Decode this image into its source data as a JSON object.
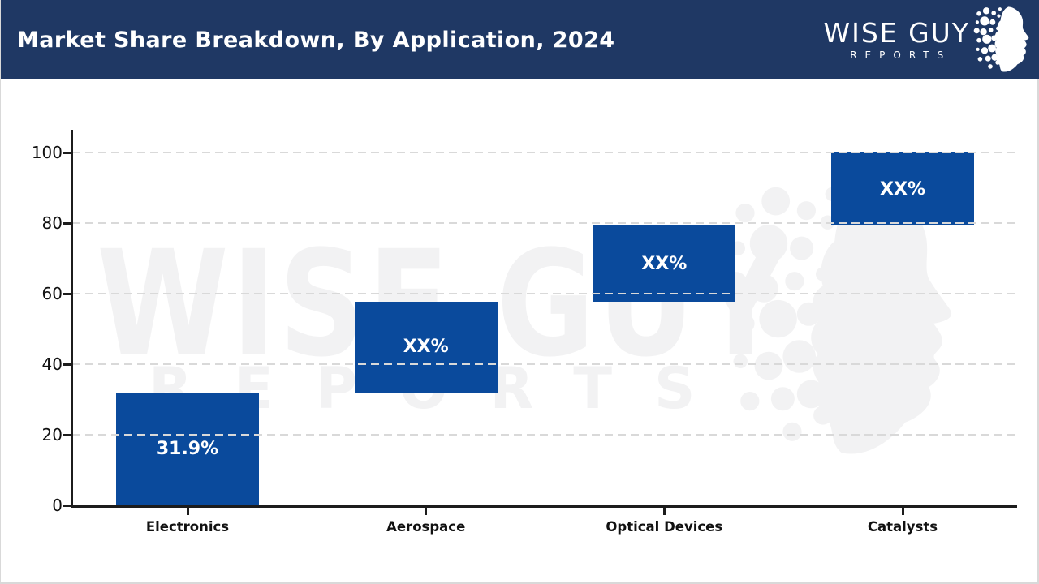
{
  "header": {
    "title": "Market Share Breakdown, By Application, 2024",
    "logo": {
      "line1": "WISE GUY",
      "line2": "REPORTS"
    }
  },
  "watermark": {
    "line1": "WISE GUY",
    "line2": "REPORTS"
  },
  "chart_data": {
    "type": "bar",
    "subtype": "waterfall",
    "title": "Market Share Breakdown, By Application, 2024",
    "categories": [
      "Electronics",
      "Aerospace",
      "Optical Devices",
      "Catalysts"
    ],
    "segments": [
      {
        "category": "Electronics",
        "start": 0,
        "end": 31.9,
        "value": 31.9,
        "label": "31.9%"
      },
      {
        "category": "Aerospace",
        "start": 31.9,
        "end": 57.8,
        "value": 25.9,
        "label": "XX%"
      },
      {
        "category": "Optical Devices",
        "start": 57.8,
        "end": 79.2,
        "value": 21.4,
        "label": "XX%"
      },
      {
        "category": "Catalysts",
        "start": 79.2,
        "end": 100,
        "value": 20.8,
        "label": "XX%"
      }
    ],
    "yticks": [
      0,
      20,
      40,
      60,
      80,
      100
    ],
    "ylim": [
      0,
      106
    ],
    "xlabel": "",
    "ylabel": "",
    "grid": "horizontal-dashed",
    "legend": "none",
    "bar_color": "#0a4a9c",
    "bar_label_color": "#ffffff",
    "axis_color": "#1c1c1c",
    "grid_color": "#d9d9d9"
  },
  "colors": {
    "header_bg": "#1f3864",
    "watermark": "#f2f2f3",
    "background": "#ffffff"
  }
}
